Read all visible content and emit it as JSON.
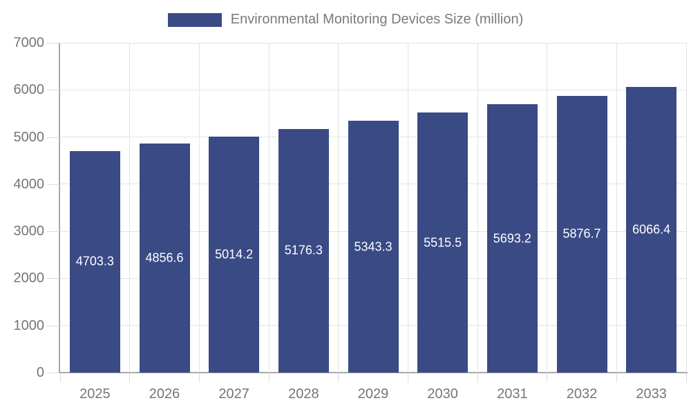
{
  "legend": {
    "label": "Environmental Monitoring Devices Size (million)",
    "swatch_color": "#3a4a85"
  },
  "chart_data": {
    "type": "bar",
    "title": "Environmental Monitoring Devices Size (million)",
    "categories": [
      "2025",
      "2026",
      "2027",
      "2028",
      "2029",
      "2030",
      "2031",
      "2032",
      "2033"
    ],
    "series": [
      {
        "name": "Environmental Monitoring Devices Size (million)",
        "values": [
          4703.3,
          4856.6,
          5014.2,
          5176.3,
          5343.3,
          5515.5,
          5693.2,
          5876.7,
          6066.4
        ]
      }
    ],
    "value_labels": [
      "4703.3",
      "4856.6",
      "5014.2",
      "5176.3",
      "5343.3",
      "5515.5",
      "5693.2",
      "5876.7",
      "6066.4"
    ],
    "xlabel": "",
    "ylabel": "",
    "ylim": [
      0,
      7000
    ],
    "ytick_interval": 1000,
    "ytick_labels": [
      "0",
      "1000",
      "2000",
      "3000",
      "4000",
      "5000",
      "6000",
      "7000"
    ],
    "grid": true,
    "legend_position": "top",
    "colors": {
      "bar": "#3a4a85",
      "value_label": "#ffffff",
      "gridline": "#e3e3e3",
      "axis_line": "#a8a8a8",
      "tick": "#dcdcdc",
      "axis_text": "#757575",
      "legend_text": "#7a7a7a",
      "background": "#ffffff"
    }
  }
}
